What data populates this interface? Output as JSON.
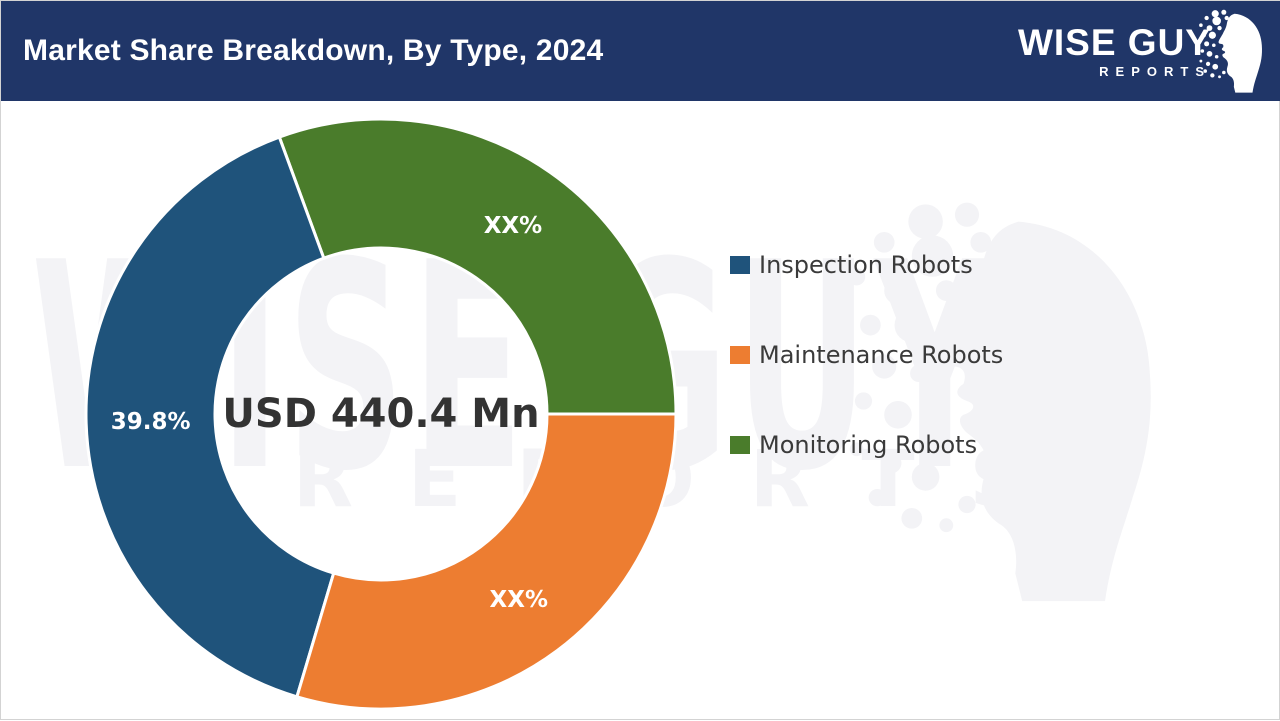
{
  "header": {
    "title": "Market Share Breakdown, By Type, 2024",
    "bg_color": "#203668",
    "logo": {
      "line1": "WISE GUY",
      "line2": "REPORTS"
    }
  },
  "watermark": {
    "line1": "WISE GUY",
    "line2": "REPORTS"
  },
  "chart_data": {
    "type": "pie",
    "subtype": "donut",
    "title": "Market Share Breakdown, By Type, 2024",
    "center_label": "USD 440.4 Mn",
    "start_angle_deg": 0,
    "direction": "counterclockwise",
    "slices": [
      {
        "name": "Monitoring Robots",
        "label": "XX%",
        "value_pct": 30.6,
        "color": "#4a7c2b"
      },
      {
        "name": "Inspection Robots",
        "label": "39.8%",
        "value_pct": 39.8,
        "color": "#1f537b"
      },
      {
        "name": "Maintenance Robots",
        "label": "XX%",
        "value_pct": 29.6,
        "color": "#ed7d31"
      }
    ],
    "separator_color": "#ffffff",
    "legend_position": "right"
  },
  "legend": {
    "items": [
      {
        "label": "Inspection Robots",
        "color": "#1f537b"
      },
      {
        "label": "Maintenance Robots",
        "color": "#ed7d31"
      },
      {
        "label": "Monitoring Robots",
        "color": "#4a7c2b"
      }
    ]
  }
}
